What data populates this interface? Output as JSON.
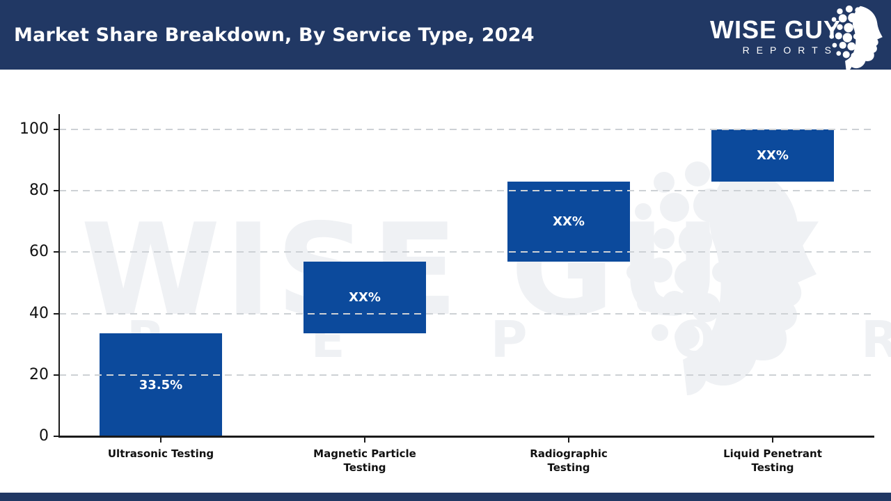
{
  "header": {
    "title": "Market Share Breakdown, By Service Type, 2024",
    "background_color": "#213864",
    "logo": {
      "wordmark": "WISE GUY",
      "subtitle": "REPORTS"
    }
  },
  "watermark": {
    "wordmark": "WISE GUY",
    "subtitle": "R E P O R T S"
  },
  "footer": {
    "background_color": "#213864"
  },
  "chart_data": {
    "type": "bar",
    "variant": "floating-waterfall",
    "title": "Market Share Breakdown, By Service Type, 2024",
    "categories": [
      "Ultrasonic Testing",
      "Magnetic Particle Testing",
      "Radiographic Testing",
      "Liquid Penetrant Testing"
    ],
    "category_lines": [
      [
        "Ultrasonic Testing"
      ],
      [
        "Magnetic Particle",
        "Testing"
      ],
      [
        "Radiographic",
        "Testing"
      ],
      [
        "Liquid Penetrant",
        "Testing"
      ]
    ],
    "segments": [
      {
        "category": "Ultrasonic Testing",
        "start": 0,
        "end": 33.5,
        "label": "33.5%"
      },
      {
        "category": "Magnetic Particle Testing",
        "start": 33.5,
        "end": 57,
        "label": "XX%"
      },
      {
        "category": "Radiographic Testing",
        "start": 57,
        "end": 83,
        "label": "XX%"
      },
      {
        "category": "Liquid Penetrant Testing",
        "start": 83,
        "end": 100,
        "label": "XX%"
      }
    ],
    "yticks": [
      0,
      20,
      40,
      60,
      80,
      100
    ],
    "ylim": [
      0,
      105
    ],
    "xlabel": "",
    "ylabel": "",
    "grid": {
      "axis": "y",
      "style": "dashed",
      "above_bars": true,
      "color": "#cdd1d5"
    },
    "bar_color": "#0c4a9c",
    "bar_label_color": "#ffffff",
    "axis_color": "#1a1a1a",
    "legend": "none"
  }
}
